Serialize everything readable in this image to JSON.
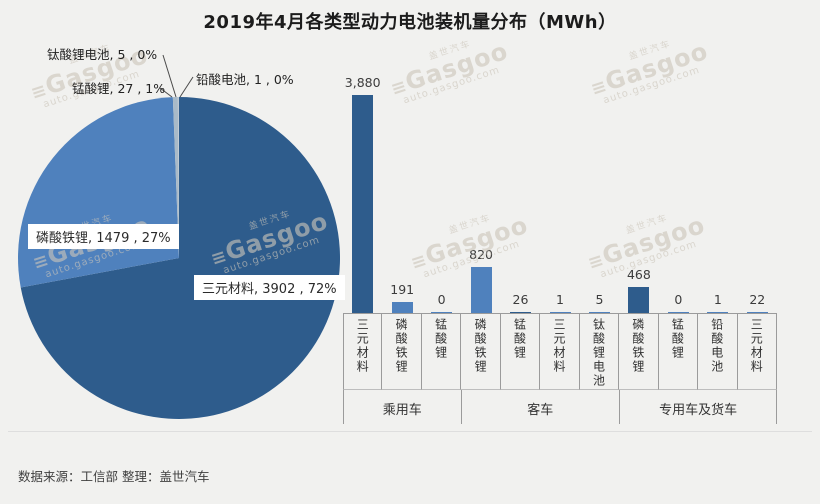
{
  "title": "2019年4月各类型动力电池装机量分布（MWh）",
  "source_note": "数据来源：工信部  整理：盖世汽车",
  "watermark": {
    "brand_cn": "盖世汽车",
    "brand": "Gasgoo",
    "url": "auto.gasgoo.com",
    "bars_glyph": "≡"
  },
  "colors": {
    "dark_blue": "#2e5c8c",
    "light_blue": "#4f81bd",
    "sliver_gray": "#a9bac8",
    "background": "#f1f1ef",
    "axis_gray": "#9b9b9b"
  },
  "chart_data": [
    {
      "type": "pie",
      "name": "battery-type-share-pie",
      "categories": [
        "三元材料",
        "磷酸铁锂",
        "锰酸锂",
        "钛酸锂电池",
        "铅酸电池"
      ],
      "values": [
        3902,
        1479,
        27,
        5,
        1
      ],
      "percent_labels": [
        "72%",
        "27%",
        "1%",
        "0%",
        "0%"
      ],
      "callout_labels": {
        "sanyuan": "三元材料, 3902 , 72%",
        "linsuantieli": "磷酸铁锂, 1479 , 27%",
        "mengsuanli": "锰酸锂, 27 , 1%",
        "taisuanli": "钛酸锂电池, 5 , 0%",
        "qiansuan": "铅酸电池, 1 , 0%"
      },
      "slice_colors": [
        "#2e5c8c",
        "#4f81bd",
        "#a9bac8",
        "#c2cdd8",
        "#8fa0b0"
      ],
      "start_angle_deg": 0,
      "direction": "clockwise"
    },
    {
      "type": "bar",
      "name": "installation-by-vehicle-type-bar",
      "ylim": [
        0,
        3880
      ],
      "grid": false,
      "groups": [
        {
          "label": "乘用车",
          "count": 3
        },
        {
          "label": "客车",
          "count": 4
        },
        {
          "label": "专用车及货车",
          "count": 4
        }
      ],
      "bars": [
        {
          "group": "乘用车",
          "category": "三元材料",
          "value": 3880,
          "display": "3,880",
          "shade": "dark"
        },
        {
          "group": "乘用车",
          "category": "磷酸铁锂",
          "value": 191,
          "display": "191",
          "shade": "light"
        },
        {
          "group": "乘用车",
          "category": "锰酸锂",
          "value": 0,
          "display": "0",
          "shade": "light"
        },
        {
          "group": "客车",
          "category": "磷酸铁锂",
          "value": 820,
          "display": "820",
          "shade": "light"
        },
        {
          "group": "客车",
          "category": "锰酸锂",
          "value": 26,
          "display": "26",
          "shade": "dark"
        },
        {
          "group": "客车",
          "category": "三元材料",
          "value": 1,
          "display": "1",
          "shade": "light"
        },
        {
          "group": "客车",
          "category": "钛酸锂电池",
          "value": 5,
          "display": "5",
          "shade": "light"
        },
        {
          "group": "专用车及货车",
          "category": "磷酸铁锂",
          "value": 468,
          "display": "468",
          "shade": "dark"
        },
        {
          "group": "专用车及货车",
          "category": "锰酸锂",
          "value": 0,
          "display": "0",
          "shade": "light"
        },
        {
          "group": "专用车及货车",
          "category": "铅酸电池",
          "value": 1,
          "display": "1",
          "shade": "light"
        },
        {
          "group": "专用车及货车",
          "category": "三元材料",
          "value": 22,
          "display": "22",
          "shade": "light"
        }
      ]
    }
  ]
}
